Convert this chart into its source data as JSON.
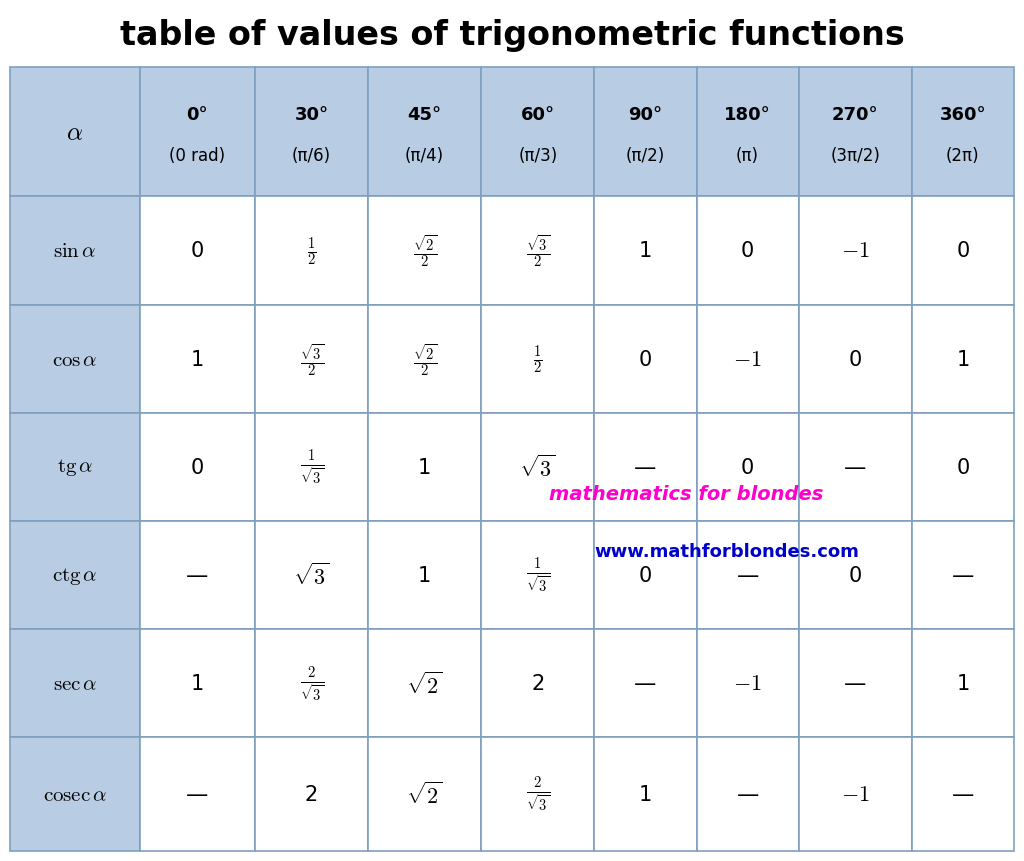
{
  "title": "table of values of trigonometric functions",
  "title_fontsize": 24,
  "title_fontweight": "bold",
  "background_color": "#ffffff",
  "header_bg": "#b8cce4",
  "cell_bg_white": "#ffffff",
  "border_color": "#7f9fbf",
  "text_color": "#000000",
  "watermark1": "mathematics for blondes",
  "watermark2": "www.mathforblondes.com",
  "watermark1_color": "#ff00cc",
  "watermark2_color": "#0000cc",
  "fig_width": 10.24,
  "fig_height": 8.62,
  "dpi": 100
}
